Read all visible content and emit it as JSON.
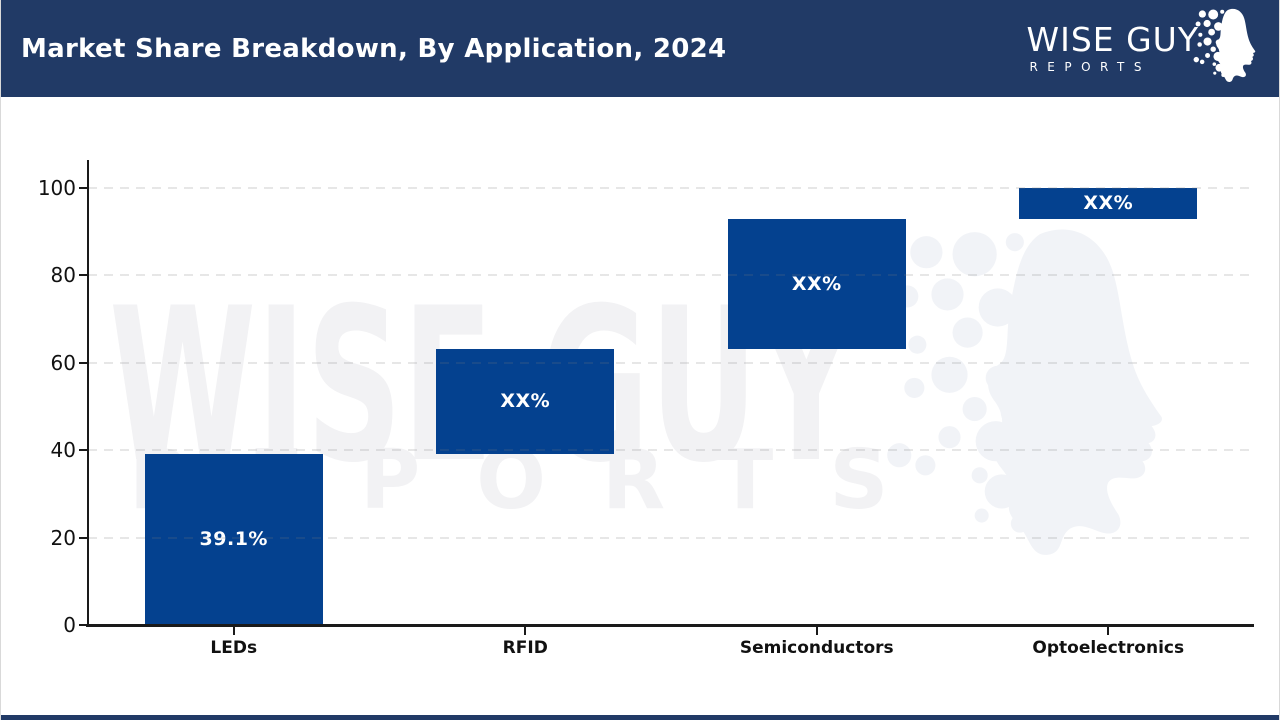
{
  "header": {
    "title": "Market Share Breakdown, By Application, 2024",
    "logo": {
      "line1": "WISE GUY",
      "line2": "REPORTS"
    }
  },
  "watermark": {
    "line1": "WISE GUY",
    "line2": "REPORTS"
  },
  "chart_data": {
    "type": "bar",
    "subtype": "waterfall",
    "title": "Market Share Breakdown, By Application, 2024",
    "categories": [
      "LEDs",
      "RFID",
      "Semiconductors",
      "Optoelectronics"
    ],
    "segments": [
      {
        "category": "LEDs",
        "start": 0,
        "end": 39.1,
        "label": "39.1%"
      },
      {
        "category": "RFID",
        "start": 39.1,
        "end": 63.1,
        "label": "XX%"
      },
      {
        "category": "Semiconductors",
        "start": 63.1,
        "end": 92.7,
        "label": "XX%"
      },
      {
        "category": "Optoelectronics",
        "start": 92.7,
        "end": 100,
        "label": "XX%"
      }
    ],
    "yticks": [
      0,
      20,
      40,
      60,
      80,
      100
    ],
    "ylim": [
      0,
      100
    ],
    "grid": "dashed-horizontal",
    "legend": "none",
    "xlabel": "",
    "ylabel": ""
  },
  "colors": {
    "header_bg": "#213a66",
    "bar": "#04418f",
    "bar_label": "#ffffff",
    "axis": "#1a1a1a",
    "grid": "#e5e5e5",
    "watermark": "#f2f2f4"
  }
}
